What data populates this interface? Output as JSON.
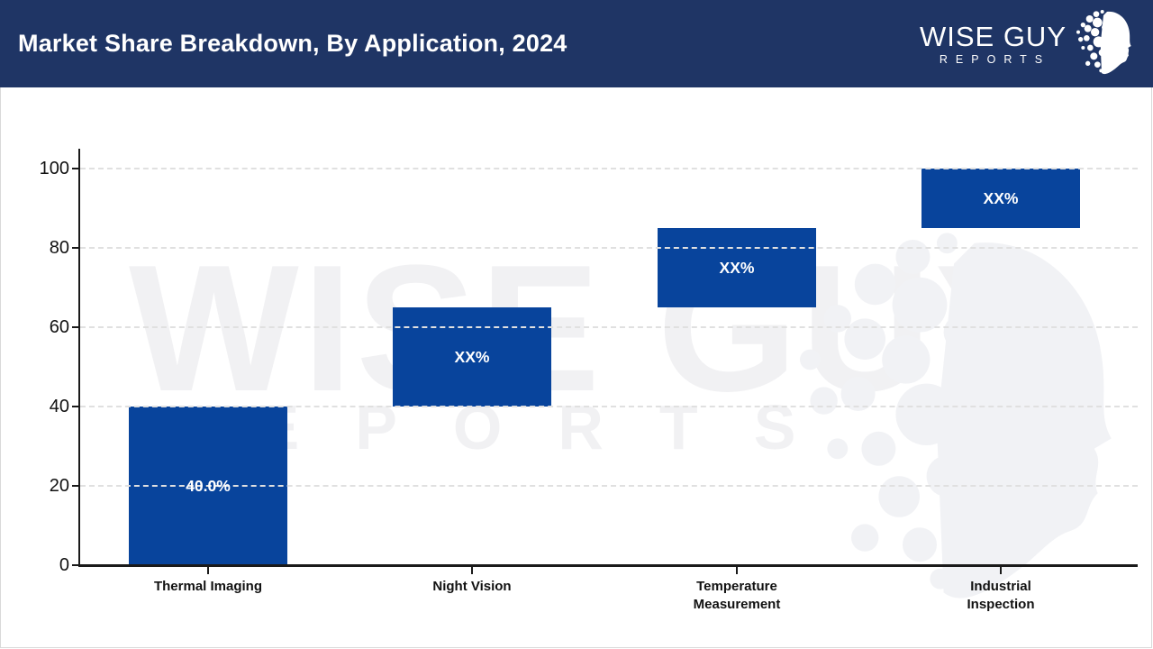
{
  "header": {
    "title": "Market Share Breakdown, By Application, 2024",
    "logo": {
      "line1": "WISE GUY",
      "line2": "REPORTS"
    }
  },
  "watermark": {
    "line1": "WISE GUY",
    "line2": "REPORTS"
  },
  "chart_data": {
    "type": "bar",
    "subtype": "waterfall",
    "title": "Market Share Breakdown, By Application, 2024",
    "categories": [
      "Thermal Imaging",
      "Night Vision",
      "Temperature Measurement",
      "Industrial Inspection"
    ],
    "category_label_lines": [
      "Thermal Imaging",
      "Night Vision",
      "Temperature\nMeasurement",
      "Industrial\nInspection"
    ],
    "series": [
      {
        "name": "Market Share",
        "segments": [
          {
            "category": "Thermal Imaging",
            "start": 0,
            "end": 40,
            "value": 40,
            "label": "40.0%"
          },
          {
            "category": "Night Vision",
            "start": 40,
            "end": 65,
            "value": 25,
            "label": "XX%"
          },
          {
            "category": "Temperature Measurement",
            "start": 65,
            "end": 85,
            "value": 20,
            "label": "XX%"
          },
          {
            "category": "Industrial Inspection",
            "start": 85,
            "end": 100,
            "value": 15,
            "label": "XX%"
          }
        ]
      }
    ],
    "xlabel": "",
    "ylabel": "",
    "yticks": [
      0,
      20,
      40,
      60,
      80,
      100
    ],
    "ylim": [
      0,
      100
    ],
    "grid": "horizontal-dashed",
    "legend": "none",
    "colors": {
      "bar": "#08449C",
      "bar_label": "#ffffff",
      "gridline": "#e0e0e0",
      "axis": "#1a1a1a",
      "header_bg": "#1F3565",
      "watermark": "#f1f1f3"
    }
  }
}
